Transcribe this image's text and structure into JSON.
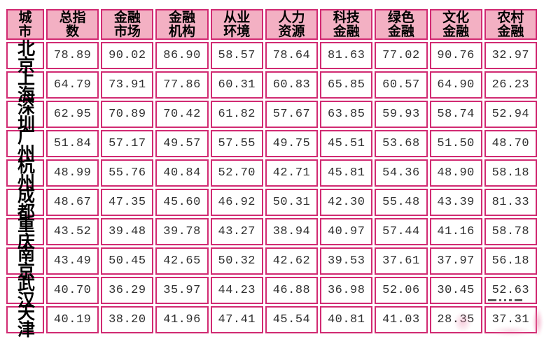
{
  "colors": {
    "border": "#d12a72",
    "header_bg": "#f3b0c3",
    "number": "#303030",
    "text": "#000000"
  },
  "chart_data": {
    "type": "table",
    "title": "",
    "columns": [
      "城市",
      "总指数",
      "金融市场",
      "金融机构",
      "从业环境",
      "人力资源",
      "科技金融",
      "绿色金融",
      "文化金融",
      "农村金融"
    ],
    "column_display": [
      "城\n市",
      "总指\n数",
      "金融\n市场",
      "金融\n机构",
      "从业\n环境",
      "人力\n资源",
      "科技\n金融",
      "绿色\n金融",
      "文化\n金融",
      "农村\n金融"
    ],
    "rows": [
      {
        "city": "北京",
        "values": [
          "78.89",
          "90.02",
          "86.90",
          "58.57",
          "78.64",
          "81.63",
          "77.02",
          "90.76",
          "32.97"
        ]
      },
      {
        "city": "上海",
        "values": [
          "64.79",
          "73.91",
          "77.86",
          "60.31",
          "60.83",
          "65.85",
          "60.57",
          "64.90",
          "26.23"
        ]
      },
      {
        "city": "深圳",
        "values": [
          "62.95",
          "70.89",
          "70.42",
          "61.82",
          "57.67",
          "63.85",
          "59.93",
          "58.74",
          "52.94"
        ]
      },
      {
        "city": "广州",
        "values": [
          "51.84",
          "57.17",
          "49.57",
          "57.55",
          "49.75",
          "45.51",
          "53.68",
          "51.50",
          "48.70"
        ]
      },
      {
        "city": "杭州",
        "values": [
          "48.99",
          "55.76",
          "40.84",
          "52.70",
          "42.71",
          "45.81",
          "54.36",
          "48.90",
          "58.18"
        ]
      },
      {
        "city": "成都",
        "values": [
          "48.67",
          "47.35",
          "45.60",
          "46.92",
          "50.31",
          "42.30",
          "55.48",
          "43.39",
          "81.33"
        ]
      },
      {
        "city": "重庆",
        "values": [
          "43.52",
          "39.48",
          "39.78",
          "43.27",
          "38.94",
          "40.97",
          "57.44",
          "41.16",
          "58.78"
        ]
      },
      {
        "city": "南京",
        "values": [
          "43.49",
          "50.45",
          "42.65",
          "50.32",
          "42.62",
          "39.53",
          "37.61",
          "37.97",
          "56.18"
        ]
      },
      {
        "city": "武汉",
        "values": [
          "40.70",
          "36.29",
          "35.97",
          "44.23",
          "46.88",
          "36.98",
          "52.06",
          "30.45",
          "52.63"
        ]
      },
      {
        "city": "天津",
        "values": [
          "40.19",
          "38.20",
          "41.96",
          "47.41",
          "45.54",
          "40.81",
          "41.03",
          "28.35",
          "37.31"
        ]
      }
    ]
  }
}
